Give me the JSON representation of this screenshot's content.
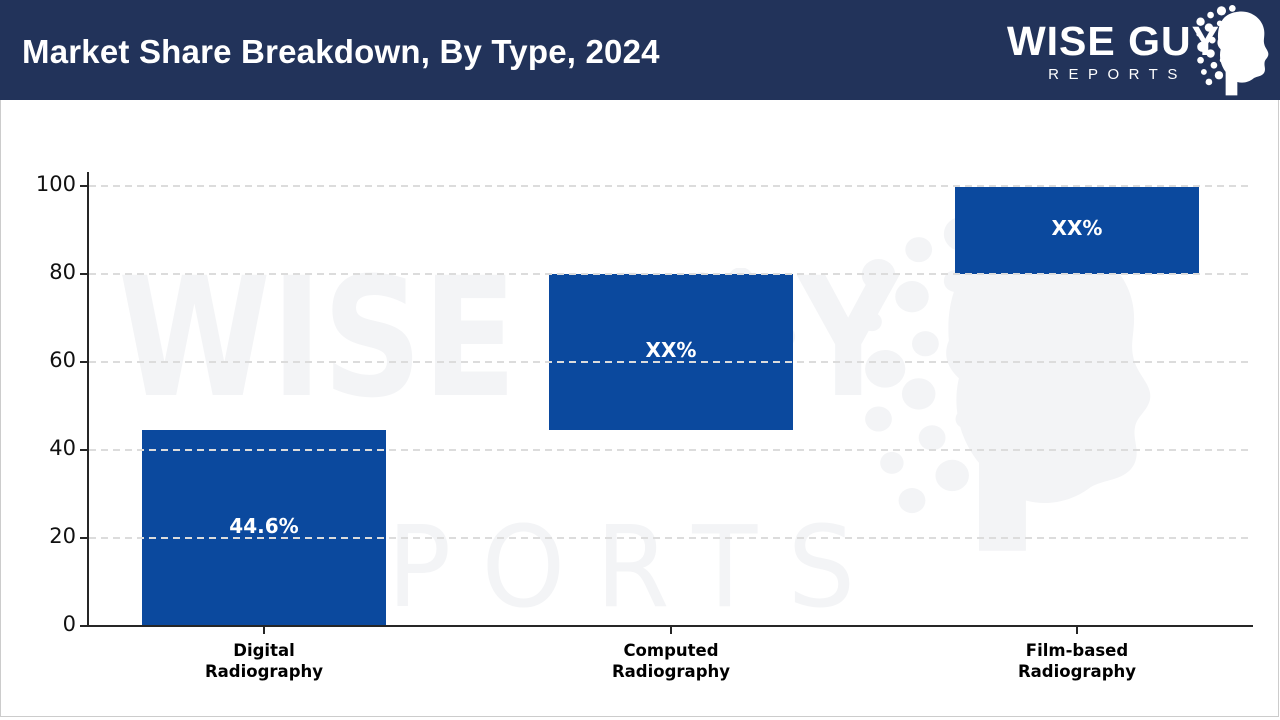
{
  "header": {
    "title": "Market Share Breakdown, By Type, 2024",
    "background_color": "#22335a",
    "logo": {
      "line1": "WISE GUY",
      "line2": "REPORTS",
      "icon": "dotted-head-profile",
      "color": "#ffffff"
    }
  },
  "watermark": {
    "word1": "WISE G",
    "word2": "Y",
    "line2": "REPORTS",
    "color": "#f3f4f6"
  },
  "chart_data": {
    "type": "bar",
    "variant": "floating-waterfall-percentage",
    "title": "Market Share Breakdown, By Type, 2024",
    "categories": [
      "Digital\nRadiography",
      "Computed\nRadiography",
      "Film-based\nRadiography"
    ],
    "segments": [
      {
        "category": "Digital Radiography",
        "start": 0,
        "end": 44.6,
        "label": "44.6%"
      },
      {
        "category": "Computed Radiography",
        "start": 44.6,
        "end": 80,
        "label": "XX%"
      },
      {
        "category": "Film-based Radiography",
        "start": 80,
        "end": 99.6,
        "label": "XX%"
      }
    ],
    "yticks": [
      0,
      20,
      40,
      60,
      80,
      100
    ],
    "ylim": [
      0,
      103
    ],
    "xlabel": "",
    "ylabel": "",
    "grid": "horizontal-dashed",
    "grid_above_bars": true,
    "legend": "none",
    "bar_color": "#0b499e",
    "bar_label_color": "#ffffff",
    "axis_color": "#262626",
    "gridline_color": "#dcdcdc"
  }
}
